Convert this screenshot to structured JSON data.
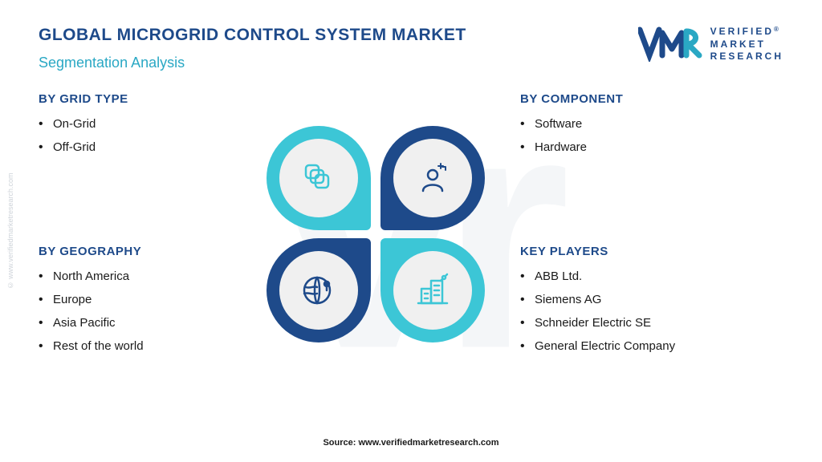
{
  "colors": {
    "title": "#1e4a8a",
    "subtitle": "#2aa8c4",
    "seg_title": "#1e4a8a",
    "petal_cyan": "#3cc6d6",
    "petal_navy": "#1e4a8a",
    "icon_cyan": "#3cc6d6",
    "icon_navy": "#1e4a8a",
    "logo_navy": "#1e4a8a",
    "logo_cyan": "#2aa8c4"
  },
  "header": {
    "title": "GLOBAL MICROGRID CONTROL SYSTEM MARKET",
    "subtitle": "Segmentation Analysis"
  },
  "logo": {
    "line1": "VERIFIED",
    "line2": "MARKET",
    "line3": "RESEARCH",
    "reg": "®"
  },
  "side_watermark": "© www.verifiedmarketresearch.com",
  "segments": {
    "grid_type": {
      "title": "BY GRID TYPE",
      "items": [
        "On-Grid",
        "Off-Grid"
      ]
    },
    "component": {
      "title": "BY COMPONENT",
      "items": [
        "Software",
        "Hardware"
      ]
    },
    "geography": {
      "title": "BY GEOGRAPHY",
      "items": [
        "North America",
        "Europe",
        "Asia Pacific",
        "Rest of the world"
      ]
    },
    "key_players": {
      "title": "KEY PLAYERS",
      "items": [
        "ABB Ltd.",
        "Siemens AG",
        "Schneider Electric SE",
        "General Electric Company"
      ]
    }
  },
  "center": {
    "petals": [
      {
        "pos": "tl",
        "fill": "petal_cyan",
        "icon": "layers",
        "icon_color": "icon_cyan"
      },
      {
        "pos": "tr",
        "fill": "petal_navy",
        "icon": "person",
        "icon_color": "icon_navy"
      },
      {
        "pos": "bl",
        "fill": "petal_navy",
        "icon": "globe",
        "icon_color": "icon_navy"
      },
      {
        "pos": "br",
        "fill": "petal_cyan",
        "icon": "building",
        "icon_color": "icon_cyan"
      }
    ]
  },
  "source": "Source: www.verifiedmarketresearch.com"
}
